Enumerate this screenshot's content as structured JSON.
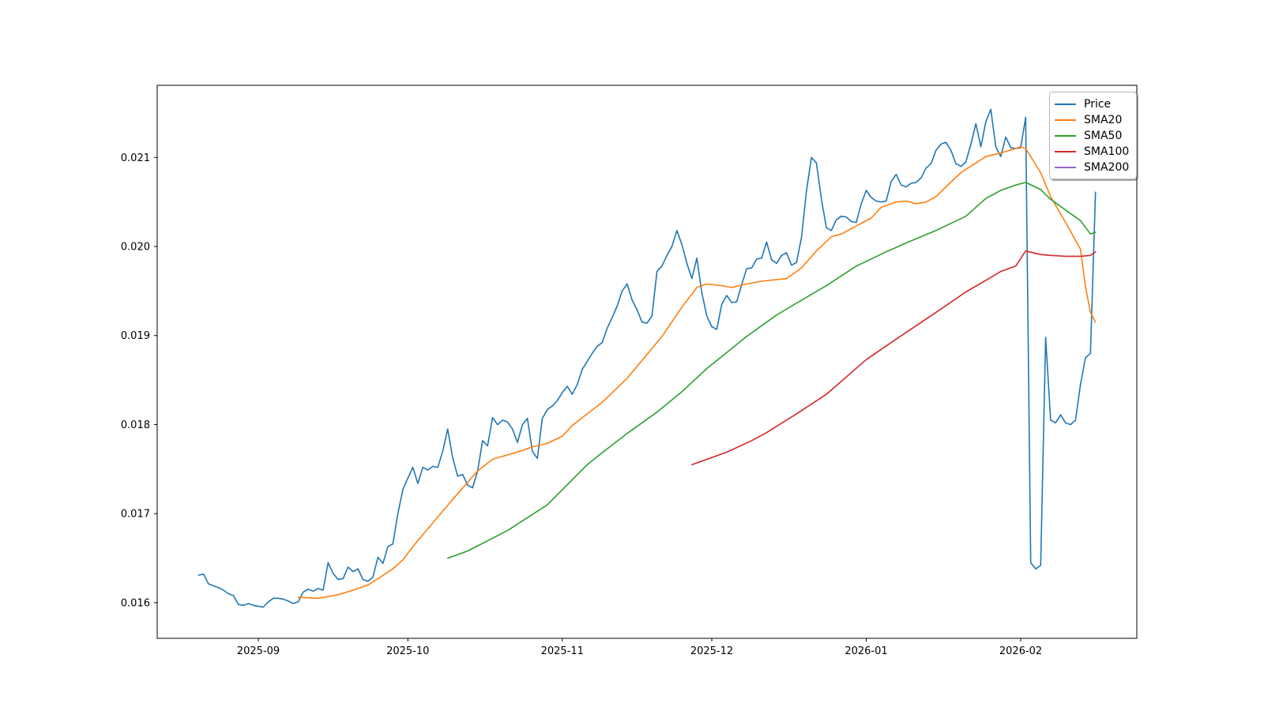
{
  "figure": {
    "background_color": "#ffffff",
    "axes_background": "#ffffff",
    "spine_color": "#000000"
  },
  "chart_data": {
    "type": "line",
    "title": "",
    "xlabel": "",
    "ylabel": "",
    "grid": false,
    "x_axis": {
      "start_date": "2025-08-20",
      "end_date": "2026-02-16",
      "tick_labels": [
        "2025-09",
        "2025-10",
        "2025-11",
        "2025-12",
        "2026-01",
        "2026-02"
      ],
      "tick_days": [
        12,
        42,
        73,
        103,
        134,
        165
      ]
    },
    "y_axis": {
      "tick_labels": [
        "0.016",
        "0.017",
        "0.018",
        "0.019",
        "0.020",
        "0.021"
      ],
      "tick_values": [
        0.016,
        0.017,
        0.018,
        0.019,
        0.02,
        0.021
      ]
    },
    "xlim_days": [
      -8.3,
      188.3
    ],
    "ylim": [
      0.0156,
      0.02181
    ],
    "legend": {
      "position": "upper right",
      "entries": [
        {
          "label": "Price",
          "color": "#1f77b4"
        },
        {
          "label": "SMA20",
          "color": "#ff7f0e"
        },
        {
          "label": "SMA50",
          "color": "#2ca02c"
        },
        {
          "label": "SMA100",
          "color": "#d62728"
        },
        {
          "label": "SMA200",
          "color": "#9467bd"
        }
      ]
    },
    "series": [
      {
        "name": "Price",
        "color": "#1f77b4",
        "mode": "daily",
        "start_day": 0,
        "values": [
          0.01631,
          0.01632,
          0.01621,
          0.01619,
          0.01617,
          0.01614,
          0.0161,
          0.01608,
          0.01598,
          0.01597,
          0.01599,
          0.01597,
          0.01596,
          0.01595,
          0.01601,
          0.01605,
          0.01605,
          0.01604,
          0.01602,
          0.01599,
          0.01601,
          0.01612,
          0.01615,
          0.01613,
          0.01616,
          0.01614,
          0.01645,
          0.01633,
          0.01626,
          0.01627,
          0.0164,
          0.01635,
          0.01638,
          0.01626,
          0.01624,
          0.01629,
          0.01651,
          0.01644,
          0.01663,
          0.01666,
          0.017,
          0.01727,
          0.0174,
          0.01752,
          0.01734,
          0.01752,
          0.01749,
          0.01753,
          0.01752,
          0.0177,
          0.01795,
          0.01763,
          0.01742,
          0.01744,
          0.01732,
          0.01729,
          0.01748,
          0.01782,
          0.01776,
          0.01808,
          0.018,
          0.01805,
          0.01803,
          0.01795,
          0.0178,
          0.018,
          0.01807,
          0.0177,
          0.01762,
          0.01807,
          0.01817,
          0.01821,
          0.01827,
          0.01836,
          0.01843,
          0.01834,
          0.01845,
          0.01862,
          0.01871,
          0.0188,
          0.01888,
          0.01892,
          0.01908,
          0.0192,
          0.01933,
          0.0195,
          0.01958,
          0.0194,
          0.01929,
          0.01915,
          0.01914,
          0.01922,
          0.01972,
          0.01978,
          0.0199,
          0.02,
          0.02018,
          0.02002,
          0.01981,
          0.01964,
          0.01987,
          0.01948,
          0.01922,
          0.0191,
          0.01907,
          0.01935,
          0.01945,
          0.01937,
          0.01938,
          0.01957,
          0.01975,
          0.01976,
          0.01986,
          0.01987,
          0.02005,
          0.01985,
          0.01981,
          0.0199,
          0.01993,
          0.01979,
          0.01982,
          0.0201,
          0.02062,
          0.021,
          0.02094,
          0.02053,
          0.02021,
          0.02018,
          0.0203,
          0.02034,
          0.02033,
          0.02028,
          0.02027,
          0.02048,
          0.02063,
          0.02055,
          0.02051,
          0.0205,
          0.02051,
          0.02073,
          0.02081,
          0.02069,
          0.02067,
          0.02071,
          0.02072,
          0.02077,
          0.02088,
          0.02093,
          0.02108,
          0.02115,
          0.02117,
          0.02108,
          0.02093,
          0.0209,
          0.02095,
          0.02115,
          0.02138,
          0.02112,
          0.0214,
          0.02154,
          0.02112,
          0.02101,
          0.02123,
          0.02111,
          0.0211,
          0.02111,
          0.02145,
          0.01645,
          0.01638,
          0.01642,
          0.01898,
          0.01805,
          0.01802,
          0.01811,
          0.01802,
          0.018,
          0.01805,
          0.01845,
          0.01875,
          0.0188,
          0.02061
        ]
      },
      {
        "name": "SMA20",
        "color": "#ff7f0e",
        "mode": "points",
        "points": [
          [
            20,
            0.01606
          ],
          [
            24,
            0.01605
          ],
          [
            28,
            0.01609
          ],
          [
            31,
            0.01614
          ],
          [
            34,
            0.0162
          ],
          [
            36,
            0.01627
          ],
          [
            39,
            0.01638
          ],
          [
            41,
            0.01648
          ],
          [
            43,
            0.01663
          ],
          [
            46,
            0.01683
          ],
          [
            51,
            0.01716
          ],
          [
            56,
            0.01748
          ],
          [
            59,
            0.01761
          ],
          [
            62,
            0.01766
          ],
          [
            65,
            0.01771
          ],
          [
            67,
            0.01775
          ],
          [
            70,
            0.01779
          ],
          [
            73,
            0.01787
          ],
          [
            75,
            0.01799
          ],
          [
            78,
            0.01812
          ],
          [
            81,
            0.01825
          ],
          [
            86,
            0.01852
          ],
          [
            89,
            0.01872
          ],
          [
            93,
            0.01899
          ],
          [
            97,
            0.01932
          ],
          [
            100,
            0.01954
          ],
          [
            102,
            0.01958
          ],
          [
            105,
            0.01956
          ],
          [
            107,
            0.01954
          ],
          [
            110,
            0.01958
          ],
          [
            113,
            0.01961
          ],
          [
            118,
            0.01964
          ],
          [
            121,
            0.01976
          ],
          [
            124,
            0.01995
          ],
          [
            127,
            0.02011
          ],
          [
            129,
            0.02014
          ],
          [
            132,
            0.02023
          ],
          [
            135,
            0.02032
          ],
          [
            137,
            0.02044
          ],
          [
            140,
            0.0205
          ],
          [
            142,
            0.02051
          ],
          [
            144,
            0.02048
          ],
          [
            146,
            0.0205
          ],
          [
            148,
            0.02056
          ],
          [
            150,
            0.02067
          ],
          [
            153,
            0.02083
          ],
          [
            158,
            0.02101
          ],
          [
            161,
            0.02105
          ],
          [
            164,
            0.0211
          ],
          [
            165,
            0.02112
          ],
          [
            166,
            0.0211
          ],
          [
            169,
            0.02083
          ],
          [
            171,
            0.02056
          ],
          [
            174,
            0.02027
          ],
          [
            177,
            0.01997
          ],
          [
            178,
            0.01955
          ],
          [
            179,
            0.01926
          ],
          [
            180,
            0.01915
          ]
        ]
      },
      {
        "name": "SMA50",
        "color": "#2ca02c",
        "mode": "points",
        "points": [
          [
            50,
            0.0165
          ],
          [
            54,
            0.01658
          ],
          [
            62,
            0.01681
          ],
          [
            70,
            0.0171
          ],
          [
            78,
            0.01755
          ],
          [
            80,
            0.01764
          ],
          [
            86,
            0.0179
          ],
          [
            92,
            0.01814
          ],
          [
            97,
            0.01837
          ],
          [
            102,
            0.01863
          ],
          [
            106,
            0.01881
          ],
          [
            110,
            0.01899
          ],
          [
            113,
            0.01911
          ],
          [
            116,
            0.01923
          ],
          [
            119,
            0.01933
          ],
          [
            122,
            0.01943
          ],
          [
            126,
            0.01956
          ],
          [
            129,
            0.01967
          ],
          [
            132,
            0.01978
          ],
          [
            135,
            0.01986
          ],
          [
            138,
            0.01994
          ],
          [
            142,
            0.02004
          ],
          [
            148,
            0.02018
          ],
          [
            154,
            0.02034
          ],
          [
            158,
            0.02054
          ],
          [
            161,
            0.02063
          ],
          [
            164,
            0.02069
          ],
          [
            166,
            0.02072
          ],
          [
            169,
            0.02064
          ],
          [
            171,
            0.02053
          ],
          [
            174,
            0.02041
          ],
          [
            177,
            0.02029
          ],
          [
            179,
            0.02014
          ],
          [
            180,
            0.02016
          ]
        ]
      },
      {
        "name": "SMA100",
        "color": "#d62728",
        "mode": "points",
        "points": [
          [
            99,
            0.01755
          ],
          [
            106,
            0.01769
          ],
          [
            111,
            0.01782
          ],
          [
            114,
            0.01791
          ],
          [
            116,
            0.01798
          ],
          [
            120,
            0.01812
          ],
          [
            126,
            0.01834
          ],
          [
            134,
            0.01873
          ],
          [
            140,
            0.01896
          ],
          [
            148,
            0.01926
          ],
          [
            154,
            0.01949
          ],
          [
            158,
            0.01962
          ],
          [
            161,
            0.01972
          ],
          [
            164,
            0.01978
          ],
          [
            166,
            0.01995
          ],
          [
            169,
            0.01991
          ],
          [
            171,
            0.0199
          ],
          [
            174,
            0.01989
          ],
          [
            177,
            0.01989
          ],
          [
            179,
            0.0199
          ],
          [
            180,
            0.01994
          ]
        ]
      },
      {
        "name": "SMA200",
        "color": "#9467bd",
        "mode": "points",
        "points": []
      }
    ]
  }
}
